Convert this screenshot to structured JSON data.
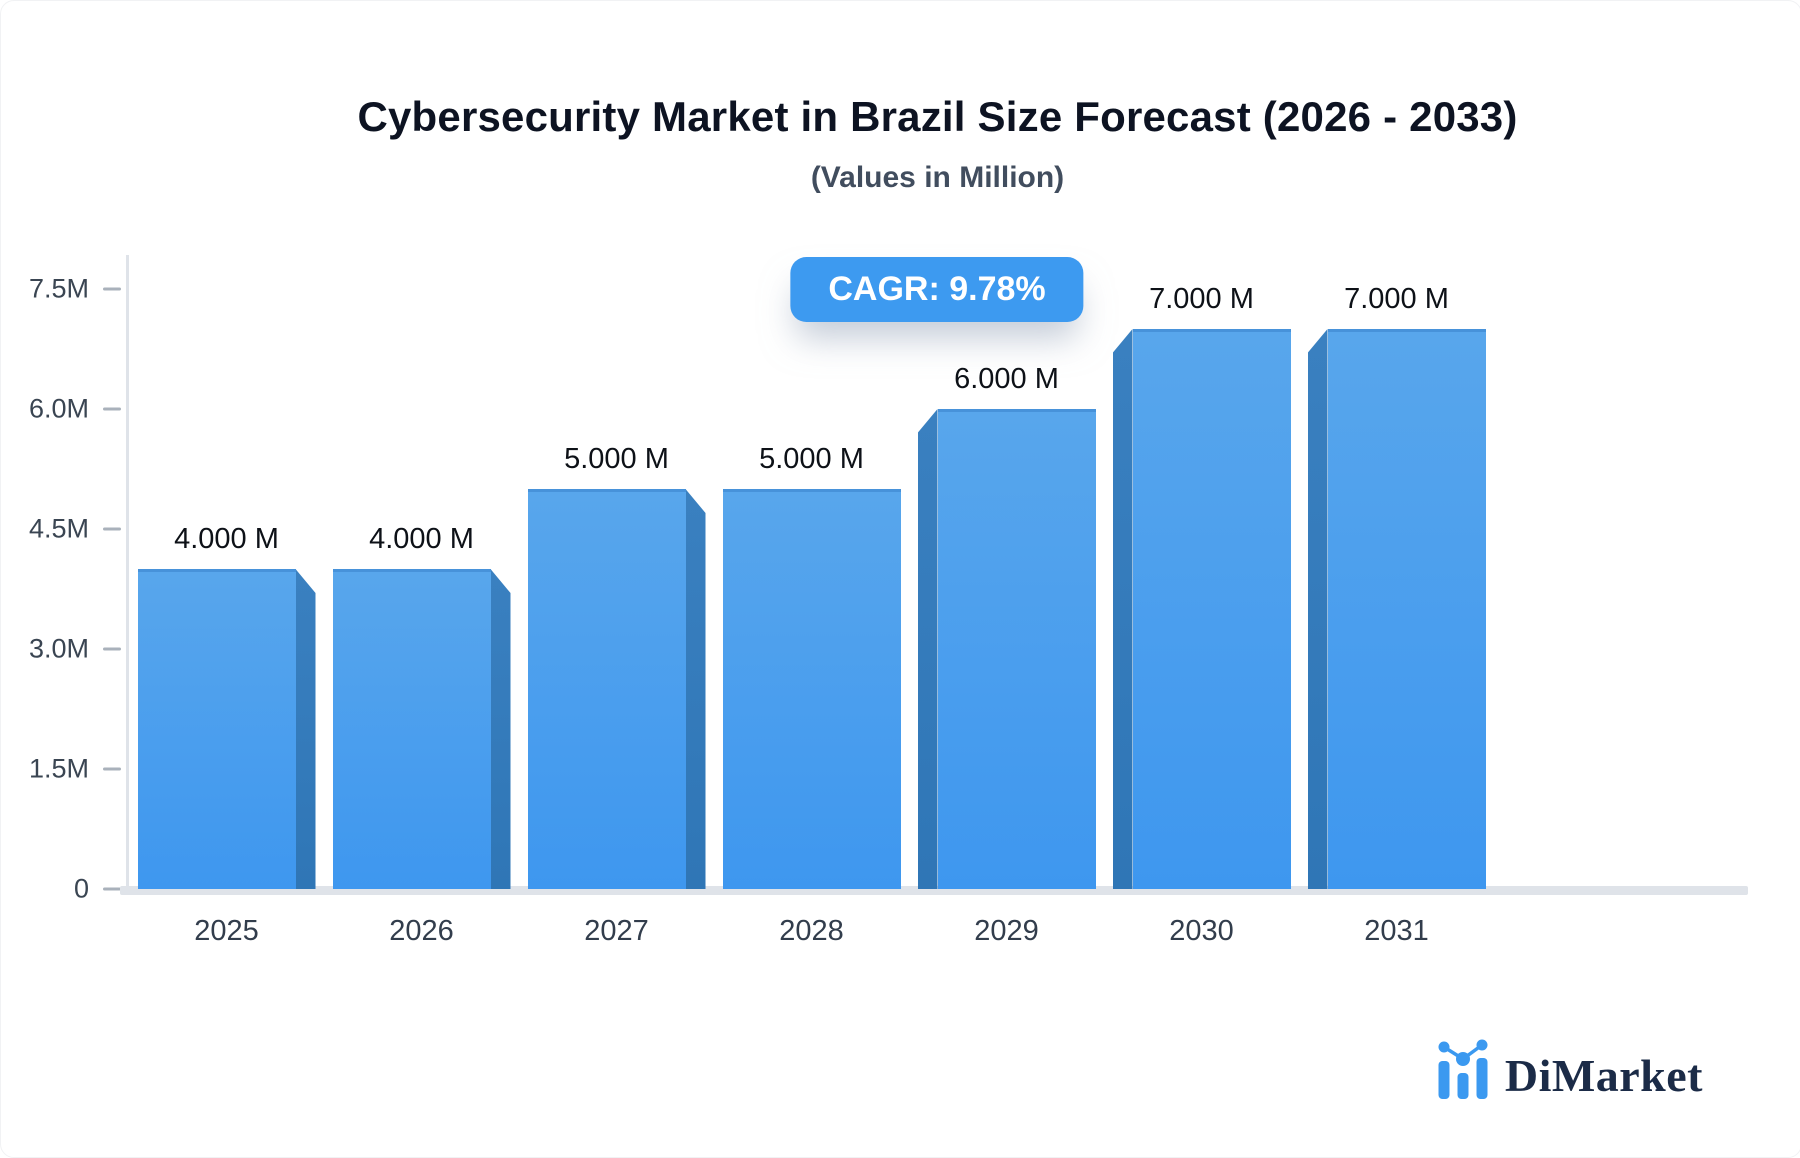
{
  "title": "Cybersecurity Market in Brazil Size Forecast (2026 - 2033)",
  "subtitle": "(Values in Million)",
  "cagr_badge": "CAGR: 9.78%",
  "chart_data": {
    "type": "bar",
    "title": "Cybersecurity Market in Brazil Size Forecast (2026 - 2033)",
    "subtitle": "(Values in Million)",
    "unit": "Million",
    "cagr_percent": 9.78,
    "categories": [
      "2025",
      "2026",
      "2027",
      "2028",
      "2029",
      "2030",
      "2031"
    ],
    "values": [
      4000,
      4000,
      5000,
      5000,
      6000,
      7000,
      7000
    ],
    "value_labels": [
      "4.000 M",
      "4.000 M",
      "5.000 M",
      "5.000 M",
      "6.000 M",
      "7.000 M",
      "7.000 M"
    ],
    "xlabel": "",
    "ylabel": "",
    "ylim": [
      0,
      7500
    ],
    "y_ticks": [
      {
        "label": "7.5M",
        "value": 7500
      },
      {
        "label": "6.0M",
        "value": 6000
      },
      {
        "label": "4.5M",
        "value": 4500
      },
      {
        "label": "3.0M",
        "value": 3000
      },
      {
        "label": "1.5M",
        "value": 1500
      },
      {
        "label": "0",
        "value": 0
      }
    ],
    "grid": false,
    "legend_position": "none",
    "bar_style": "3d-bevel"
  },
  "branding": {
    "name": "DiMarket",
    "icon": "bar-chart-logo-icon"
  },
  "colors": {
    "bar_top": "#58a6ec",
    "bar_bottom": "#3e97ef",
    "bar_side": "#2f76b6",
    "badge_bg": "#3d9af0",
    "axis": "#dfe3e9",
    "logo_blue": "#3b99f0",
    "logo_text": "#1b2b47"
  }
}
